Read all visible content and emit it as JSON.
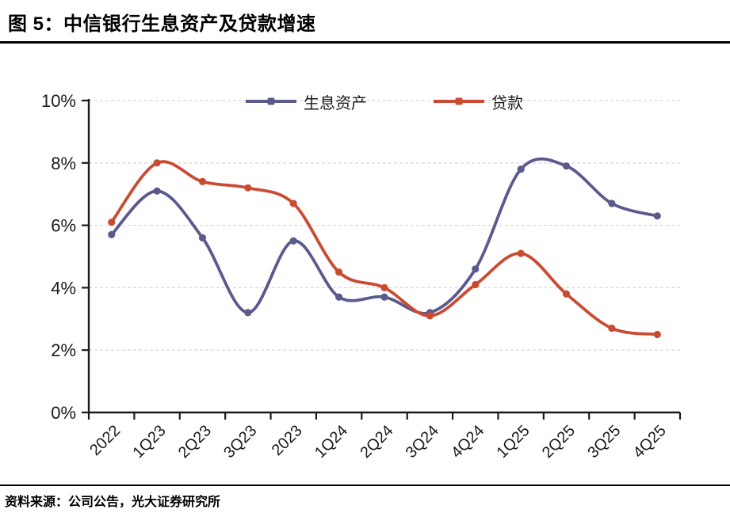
{
  "header": {
    "title": "图 5：中信银行生息资产及贷款增速"
  },
  "footer": {
    "source": "资料来源：公司公告，光大证券研究所"
  },
  "chart_data": {
    "type": "line",
    "title": "中信银行生息资产及贷款增速",
    "categories": [
      "2022",
      "1Q23",
      "2Q23",
      "3Q23",
      "2023",
      "1Q24",
      "2Q24",
      "3Q24",
      "4Q24",
      "1Q25",
      "2Q25",
      "3Q25",
      "4Q25"
    ],
    "series": [
      {
        "name": "生息资产",
        "color": "#5A5A8C",
        "values": [
          5.7,
          7.1,
          5.6,
          3.2,
          5.5,
          3.7,
          3.7,
          3.2,
          4.6,
          7.8,
          7.9,
          6.7,
          6.3
        ]
      },
      {
        "name": "贷款",
        "color": "#C94B32",
        "values": [
          6.1,
          8.0,
          7.4,
          7.2,
          6.7,
          4.5,
          4.0,
          3.1,
          4.1,
          5.1,
          3.8,
          2.7,
          2.5
        ]
      }
    ],
    "ylim": [
      0,
      10
    ],
    "ytick_values": [
      0,
      2,
      4,
      6,
      8,
      10
    ],
    "ytick_labels": [
      "0%",
      "2%",
      "4%",
      "6%",
      "8%",
      "10%"
    ],
    "xlabel": "",
    "ylabel": "",
    "grid": "horizontal-dashed",
    "gridline_color": "#d9d9d9",
    "axis_color": "#1a1a1a",
    "tick_label_color": "#1a1a1a",
    "legend_position": "top-center",
    "x_label_rotation_deg": -45
  }
}
